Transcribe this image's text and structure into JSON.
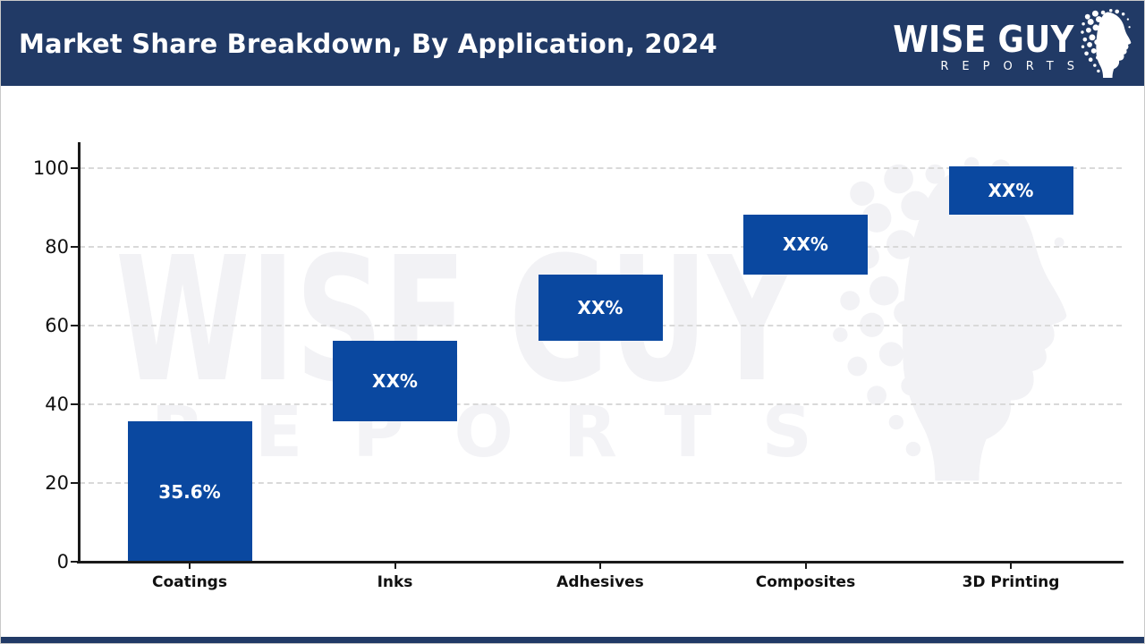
{
  "header": {
    "title": "Market Share Breakdown, By Application, 2024",
    "brand": {
      "line1": "WISE GUY",
      "line2": "REPORTS"
    }
  },
  "watermark": {
    "line1": "WISE GUY",
    "line2": "REPORTS"
  },
  "chart_data": {
    "type": "bar",
    "subtype": "waterfall",
    "title": "Market Share Breakdown, By Application, 2024",
    "xlabel": "",
    "ylabel": "",
    "categories": [
      "Coatings",
      "Inks",
      "Adhesives",
      "Composites",
      "3D Printing"
    ],
    "segments": [
      {
        "category": "Coatings",
        "start": 0,
        "end": 35.6,
        "label": "35.6%"
      },
      {
        "category": "Inks",
        "start": 35.6,
        "end": 56.1,
        "label": "XX%"
      },
      {
        "category": "Adhesives",
        "start": 56.1,
        "end": 73.0,
        "label": "XX%"
      },
      {
        "category": "Composites",
        "start": 73.0,
        "end": 88.2,
        "label": "XX%"
      },
      {
        "category": "3D Printing",
        "start": 88.2,
        "end": 100.5,
        "label": "XX%"
      }
    ],
    "yticks": [
      0,
      20,
      40,
      60,
      80,
      100
    ],
    "ylim": [
      0,
      106
    ],
    "grid": "horizontal-dashed",
    "legend": "none",
    "bar_color": "#0A48A0",
    "bar_label_color": "#FFFFFF"
  },
  "colors": {
    "header_bg": "#213A66",
    "footer_bg": "#213A66",
    "bar_blue": "#0A48A0",
    "grid_gray": "#D9D9D9",
    "axis_black": "#1A1A1A",
    "tick_text": "#111111",
    "watermark_gray": "#F2F2F5",
    "title_text": "#FFFFFF"
  }
}
